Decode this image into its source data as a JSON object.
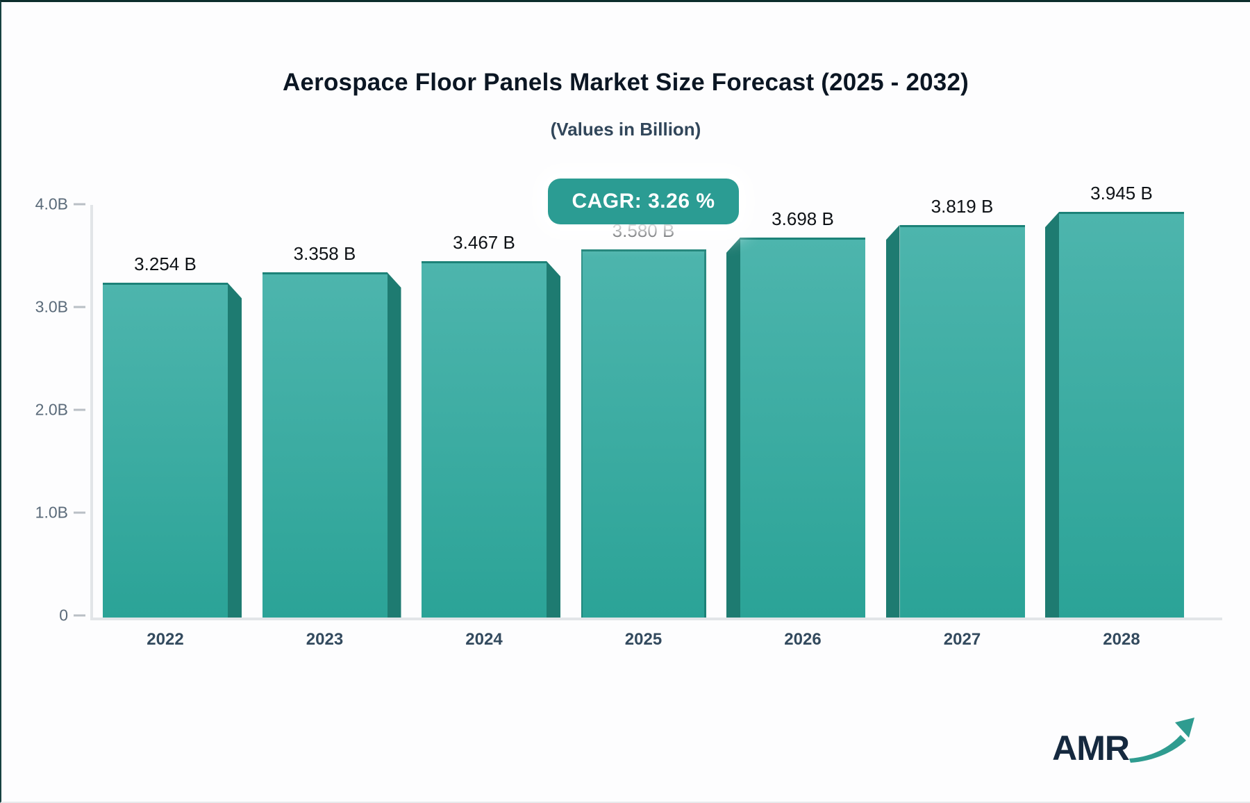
{
  "title": "Aerospace Floor Panels Market Size Forecast (2025 - 2032)",
  "subtitle": "(Values in Billion)",
  "badge": {
    "label": "CAGR: 3.26 %"
  },
  "logo": {
    "text": "AMR"
  },
  "colors": {
    "bar_face_top": "#4db5ad",
    "bar_face_bottom": "#2ba397",
    "bar_side": "#1e7b71",
    "badge_bg": "#2b9c93",
    "axis_line": "#e2e5e8",
    "tick_text": "#5a6a79",
    "x_label_text": "#334a5e",
    "value_text": "#0e1216",
    "logo_text": "#15293f",
    "logo_arrow": "#2f9c90"
  },
  "chart_data": {
    "type": "bar",
    "title": "Aerospace Floor Panels Market Size Forecast (2025 - 2032)",
    "subtitle": "(Values in Billion)",
    "xlabel": "",
    "ylabel": "Values in Billion",
    "categories": [
      "2022",
      "2023",
      "2024",
      "2025",
      "2026",
      "2027",
      "2028"
    ],
    "values": [
      3.254,
      3.358,
      3.467,
      3.58,
      3.698,
      3.819,
      3.945
    ],
    "value_labels": [
      "3.254 B",
      "3.358 B",
      "3.467 B",
      "3.580 B",
      "3.698 B",
      "3.819 B",
      "3.945 B"
    ],
    "yticks": [
      "4.0B",
      "3.0B",
      "2.0B",
      "1.0B",
      "0"
    ],
    "ytick_values": [
      4.0,
      3.0,
      2.0,
      1.0,
      0
    ],
    "ylim": [
      0,
      4.0
    ],
    "grid": false,
    "legend": false,
    "bar_3d_sides": [
      "right",
      "right",
      "right",
      "none",
      "left",
      "left",
      "left"
    ],
    "annotation": "CAGR: 3.26 %"
  }
}
